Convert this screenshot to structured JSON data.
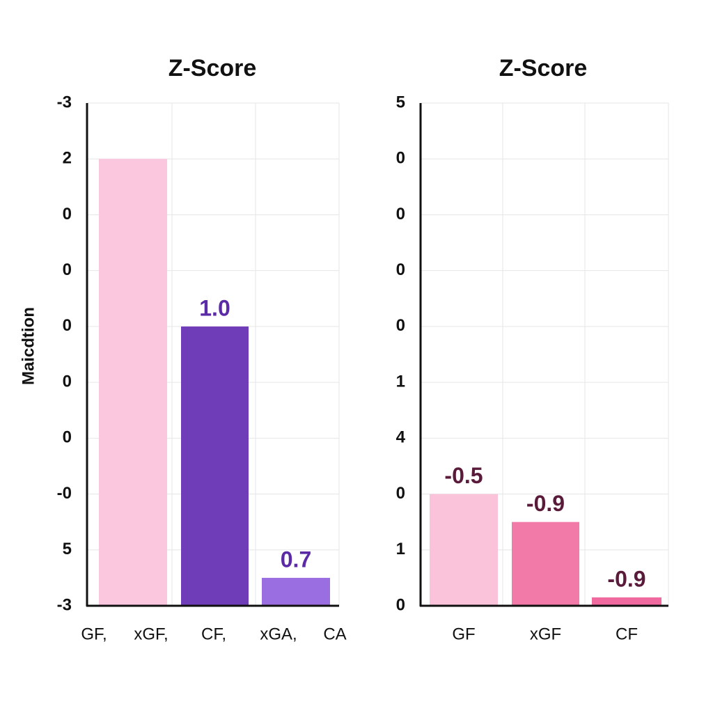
{
  "chart_data": [
    {
      "type": "bar",
      "title": "Z-Score",
      "ylabel": "Maicdtion",
      "categories": [
        null,
        null,
        null
      ],
      "values": [
        8,
        5,
        0.5
      ],
      "bar_notes": [
        null,
        "1.0",
        "0.7"
      ],
      "colors": [
        "#fac7df",
        "#6f3db8",
        "#9a6ee0"
      ],
      "note_color": "#5b2aa6",
      "x_labels": [
        "GF,",
        "xGF,",
        "CF,",
        "xGA,",
        "CA"
      ],
      "ylim": [
        0,
        9
      ],
      "yticks": [
        {
          "value": 0,
          "label": "-3"
        },
        {
          "value": 1,
          "label": "5"
        },
        {
          "value": 2,
          "label": "-0"
        },
        {
          "value": 3,
          "label": "0"
        },
        {
          "value": 4,
          "label": "0"
        },
        {
          "value": 5,
          "label": "0"
        },
        {
          "value": 6,
          "label": "0"
        },
        {
          "value": 7,
          "label": "0"
        },
        {
          "value": 8,
          "label": "2"
        },
        {
          "value": 9,
          "label": "-3"
        }
      ],
      "grid": true
    },
    {
      "type": "bar",
      "title": "Z-Score",
      "categories": [
        "GF",
        "xGF",
        "CF"
      ],
      "values": [
        2,
        1.5,
        0.15
      ],
      "bar_notes": [
        "-0.5",
        "-0.9",
        "-0.9"
      ],
      "colors": [
        "#fbc3da",
        "#f27aa8",
        "#f06a9f"
      ],
      "note_color": "#5a1a3a",
      "ylim": [
        0,
        9
      ],
      "yticks": [
        {
          "value": 0,
          "label": "0"
        },
        {
          "value": 1,
          "label": "1"
        },
        {
          "value": 2,
          "label": "0"
        },
        {
          "value": 3,
          "label": "4"
        },
        {
          "value": 4,
          "label": "1"
        },
        {
          "value": 5,
          "label": "0"
        },
        {
          "value": 6,
          "label": "0"
        },
        {
          "value": 7,
          "label": "0"
        },
        {
          "value": 8,
          "label": "0"
        },
        {
          "value": 9,
          "label": "5"
        }
      ],
      "grid": true
    }
  ]
}
